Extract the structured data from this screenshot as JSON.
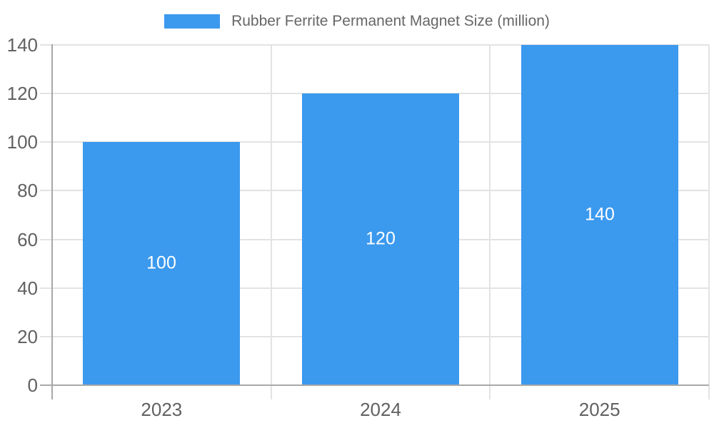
{
  "chart_data": {
    "type": "bar",
    "title": "Rubber Ferrite Permanent Magnet Size (million)",
    "categories": [
      "2023",
      "2024",
      "2025"
    ],
    "values": [
      100,
      120,
      140
    ],
    "value_labels": [
      "100",
      "120",
      "140"
    ],
    "xlabel": "",
    "ylabel": "",
    "ylim": [
      0,
      140
    ],
    "yticks": [
      0,
      20,
      40,
      60,
      80,
      100,
      120,
      140
    ],
    "legend_position": "top",
    "grid": true,
    "colors": {
      "bar": "#3b99ee",
      "axis": "#a8a8a8",
      "gridline": "#e3e3e3",
      "axis_label_text": "#616161",
      "legend_text": "#666666",
      "value_label_text": "#ffffff",
      "background": "#ffffff"
    }
  }
}
